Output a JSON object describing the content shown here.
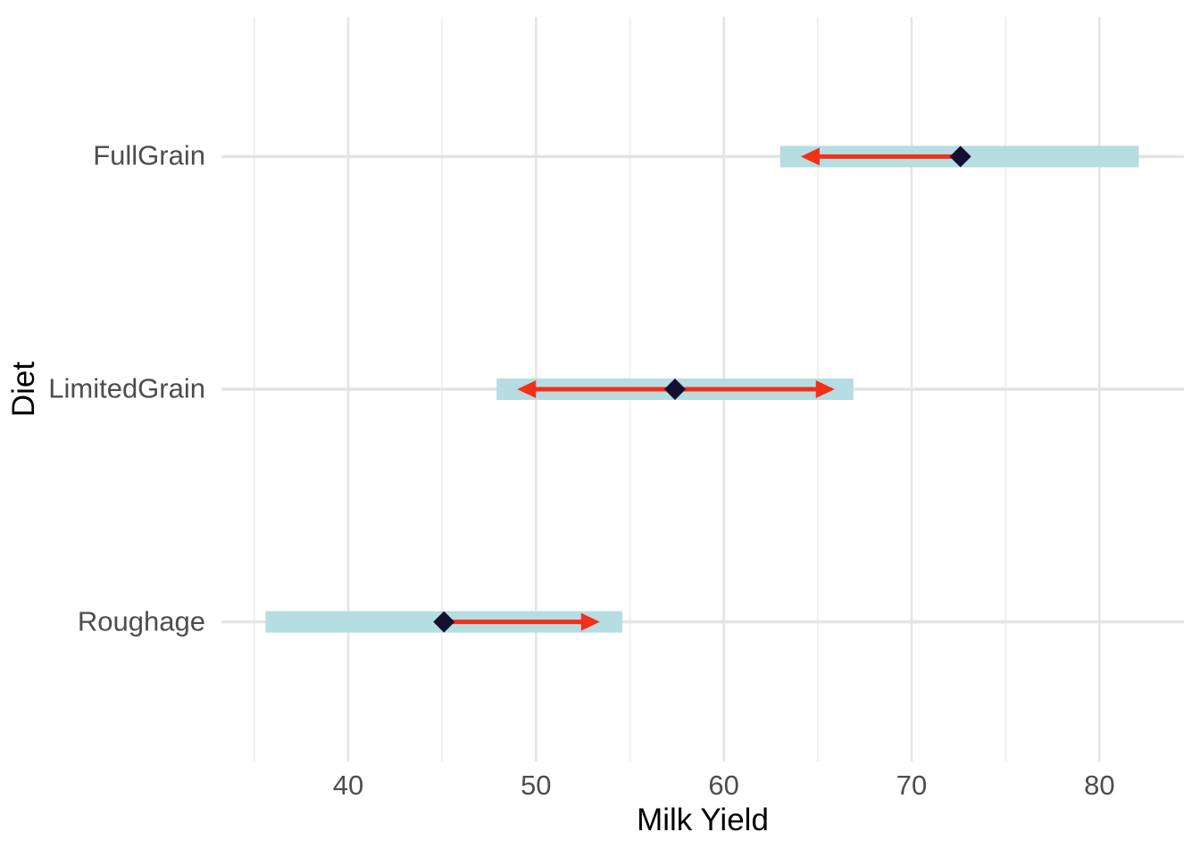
{
  "chart_data": {
    "type": "interval",
    "title": "",
    "xlabel": "Milk Yield",
    "ylabel": "Diet",
    "grid": "on",
    "legend": "none",
    "marker": "diamond",
    "categories": [
      "FullGrain",
      "LimitedGrain",
      "Roughage"
    ],
    "xlim": [
      33.25,
      84.5
    ],
    "x_major_ticks": [
      40,
      50,
      60,
      70,
      80
    ],
    "x_major_tick_labels": [
      "40",
      "50",
      "60",
      "70",
      "80"
    ],
    "x_minor_ticks": [
      35,
      45,
      55,
      65,
      75
    ],
    "series": [
      {
        "name": "FullGrain",
        "estimate": 72.6,
        "ci_lower": 63.0,
        "ci_upper": 82.1,
        "arrow_left_tip": 64.1,
        "arrow_right_tip": null
      },
      {
        "name": "LimitedGrain",
        "estimate": 57.4,
        "ci_lower": 47.9,
        "ci_upper": 66.9,
        "arrow_left_tip": 49.0,
        "arrow_right_tip": 65.9
      },
      {
        "name": "Roughage",
        "estimate": 45.1,
        "ci_lower": 35.6,
        "ci_upper": 54.6,
        "arrow_left_tip": null,
        "arrow_right_tip": 53.4
      }
    ],
    "colors": {
      "background": "#FFFFFF",
      "ci_bar": "#B5DDE2",
      "comparison_arrow": "#F23018",
      "estimate_point": "#150F30",
      "grid_major": "#E4E4E4",
      "grid_minor": "#F0F0F0",
      "tick_label": "#4D4D4D",
      "axis_title": "#000000"
    }
  }
}
